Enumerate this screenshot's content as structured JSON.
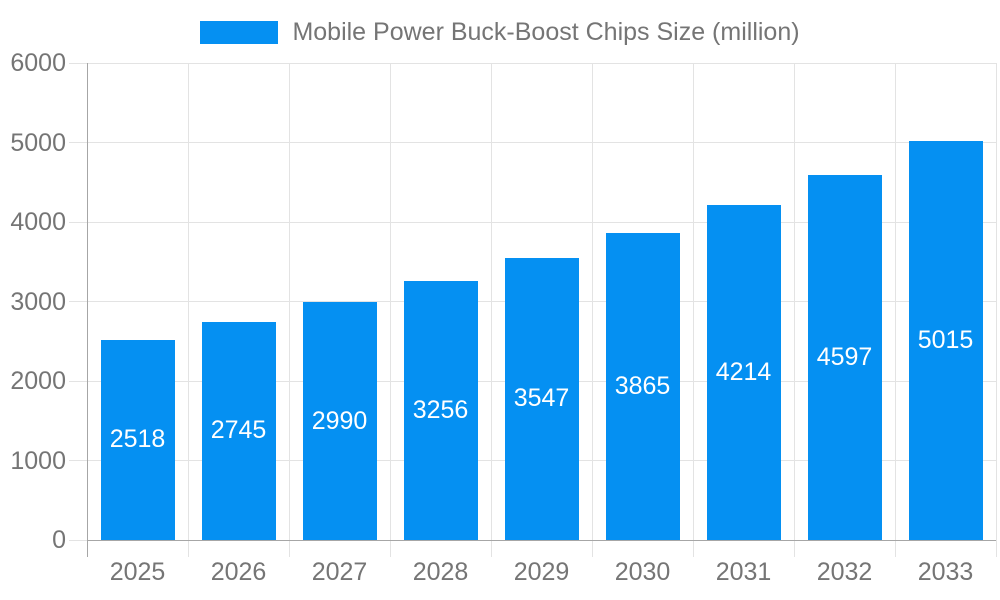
{
  "chart_data": {
    "type": "bar",
    "series_name": "Mobile Power Buck-Boost Chips Size (million)",
    "categories": [
      "2025",
      "2026",
      "2027",
      "2028",
      "2029",
      "2030",
      "2031",
      "2032",
      "2033"
    ],
    "values": [
      2518,
      2745,
      2990,
      3256,
      3547,
      3865,
      4214,
      4597,
      5015
    ],
    "xlabel": "",
    "ylabel": "",
    "ylim": [
      0,
      6000
    ],
    "yticks": [
      0,
      1000,
      2000,
      3000,
      4000,
      5000,
      6000
    ],
    "grid": true,
    "legend_position": "top-center",
    "value_labels": "inside-center",
    "colors": {
      "bar": "#0590f2",
      "grid": "#e3e3e3",
      "axis": "#a6a6a6",
      "text": "#757575",
      "bar_label": "#ffffff"
    }
  }
}
